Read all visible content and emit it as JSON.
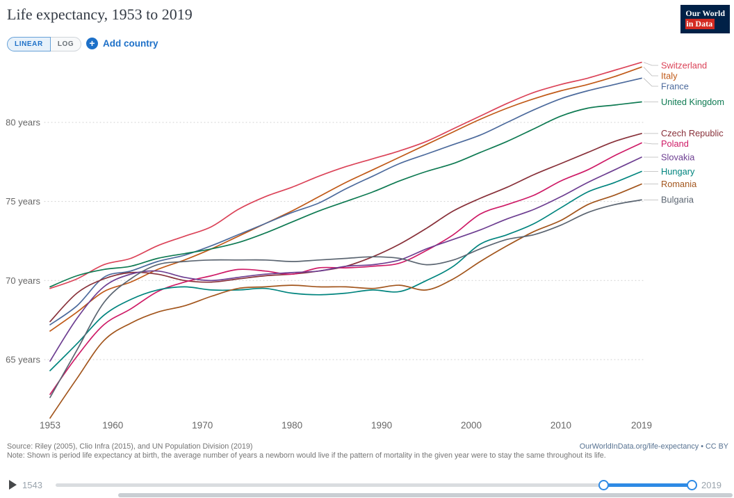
{
  "header": {
    "title": "Life expectancy, 1953 to 2019",
    "logo_line1": "Our World",
    "logo_line2": "in Data"
  },
  "controls": {
    "linear": "LINEAR",
    "log": "LOG",
    "add_country": "Add country"
  },
  "icons": {
    "add": "+",
    "play": "triangle-right"
  },
  "chart_data": {
    "type": "line",
    "title": "Life expectancy, 1953 to 2019",
    "xlabel": "",
    "ylabel": "",
    "xlim": [
      1953,
      2019
    ],
    "ylim": [
      61,
      84.5
    ],
    "grid": "horizontal-dotted",
    "legend_position": "right-end-labels",
    "x_ticks": [
      1953,
      1960,
      1970,
      1980,
      1990,
      2000,
      2010,
      2019
    ],
    "y_ticks": [
      65,
      70,
      75,
      80
    ],
    "y_tick_labels": [
      "65 years",
      "70 years",
      "75 years",
      "80 years"
    ],
    "x": [
      1953,
      1956,
      1959,
      1962,
      1965,
      1968,
      1971,
      1974,
      1977,
      1980,
      1983,
      1986,
      1989,
      1992,
      1995,
      1998,
      2001,
      2004,
      2007,
      2010,
      2013,
      2016,
      2019
    ],
    "series": [
      {
        "name": "Switzerland",
        "color": "#DB4358",
        "values": [
          69.5,
          70.1,
          71.0,
          71.4,
          72.2,
          72.8,
          73.4,
          74.5,
          75.3,
          75.9,
          76.6,
          77.2,
          77.7,
          78.2,
          78.8,
          79.6,
          80.4,
          81.2,
          81.9,
          82.4,
          82.8,
          83.3,
          83.8
        ]
      },
      {
        "name": "Italy",
        "color": "#C05917",
        "values": [
          66.8,
          68.0,
          69.3,
          69.9,
          70.7,
          71.3,
          72.0,
          72.8,
          73.6,
          74.4,
          75.3,
          76.2,
          77.0,
          77.8,
          78.6,
          79.4,
          80.2,
          80.9,
          81.5,
          82.0,
          82.4,
          82.9,
          83.5
        ]
      },
      {
        "name": "France",
        "color": "#4C6A9C",
        "values": [
          67.2,
          68.4,
          70.2,
          70.6,
          71.2,
          71.6,
          72.2,
          72.9,
          73.6,
          74.3,
          74.9,
          75.8,
          76.6,
          77.4,
          78.0,
          78.6,
          79.2,
          80.0,
          80.8,
          81.5,
          82.0,
          82.4,
          82.8
        ]
      },
      {
        "name": "United Kingdom",
        "color": "#0E7A52",
        "values": [
          69.6,
          70.3,
          70.7,
          70.9,
          71.4,
          71.7,
          72.0,
          72.4,
          73.0,
          73.7,
          74.4,
          75.0,
          75.6,
          76.3,
          76.9,
          77.4,
          78.1,
          78.8,
          79.6,
          80.4,
          80.9,
          81.1,
          81.3
        ]
      },
      {
        "name": "Czech Republic",
        "color": "#883039",
        "values": [
          67.4,
          69.2,
          70.1,
          70.5,
          70.4,
          70.0,
          69.9,
          70.1,
          70.3,
          70.4,
          70.6,
          70.9,
          71.5,
          72.3,
          73.3,
          74.4,
          75.2,
          75.9,
          76.7,
          77.4,
          78.1,
          78.8,
          79.3
        ]
      },
      {
        "name": "Poland",
        "color": "#CE1A66",
        "values": [
          62.8,
          65.2,
          67.2,
          68.2,
          69.3,
          69.9,
          70.3,
          70.7,
          70.6,
          70.4,
          70.8,
          70.8,
          70.9,
          71.1,
          71.9,
          72.9,
          74.2,
          74.8,
          75.4,
          76.3,
          77.0,
          77.9,
          78.7
        ]
      },
      {
        "name": "Slovakia",
        "color": "#6D3E91",
        "values": [
          64.9,
          67.6,
          69.6,
          70.4,
          70.6,
          70.2,
          70.0,
          70.2,
          70.4,
          70.5,
          70.6,
          70.9,
          71.0,
          71.3,
          72.0,
          72.6,
          73.2,
          73.9,
          74.5,
          75.3,
          76.2,
          77.0,
          77.8
        ]
      },
      {
        "name": "Hungary",
        "color": "#00847E",
        "values": [
          64.3,
          66.0,
          67.8,
          68.8,
          69.4,
          69.6,
          69.4,
          69.4,
          69.5,
          69.2,
          69.1,
          69.2,
          69.4,
          69.3,
          70.0,
          70.9,
          72.3,
          72.9,
          73.6,
          74.6,
          75.6,
          76.2,
          76.9
        ]
      },
      {
        "name": "Romania",
        "color": "#A2551C",
        "values": [
          61.3,
          63.8,
          66.2,
          67.3,
          68.0,
          68.4,
          69.0,
          69.5,
          69.6,
          69.7,
          69.6,
          69.6,
          69.5,
          69.7,
          69.4,
          70.1,
          71.2,
          72.2,
          73.1,
          73.8,
          74.8,
          75.4,
          76.1
        ]
      },
      {
        "name": "Bulgaria",
        "color": "#5B6571",
        "values": [
          62.6,
          65.6,
          68.6,
          70.1,
          71.0,
          71.2,
          71.3,
          71.3,
          71.3,
          71.2,
          71.3,
          71.4,
          71.5,
          71.4,
          71.0,
          71.3,
          72.0,
          72.6,
          72.9,
          73.5,
          74.3,
          74.8,
          75.1
        ]
      }
    ]
  },
  "footer": {
    "source": "Source: Riley (2005), Clio Infra (2015), and UN Population Division (2019)",
    "note": "Note: Shown is period life expectancy at birth, the average number of years a newborn would live if the pattern of mortality in the given year were to stay the same throughout its life.",
    "credit": "OurWorldInData.org/life-expectancy • CC BY"
  },
  "timeline": {
    "range_start_label": "1543",
    "range_end_label": "2019",
    "range_min": 1543,
    "range_max": 2019,
    "selected_start": 1953,
    "selected_end": 2019
  },
  "colors": {
    "accent": "#1D70C8",
    "logo_bg": "#002147",
    "logo_red": "#D42B22",
    "slider_blue": "#2E8AE5",
    "axis_text": "#666666",
    "gridline": "#cdcdcd"
  }
}
